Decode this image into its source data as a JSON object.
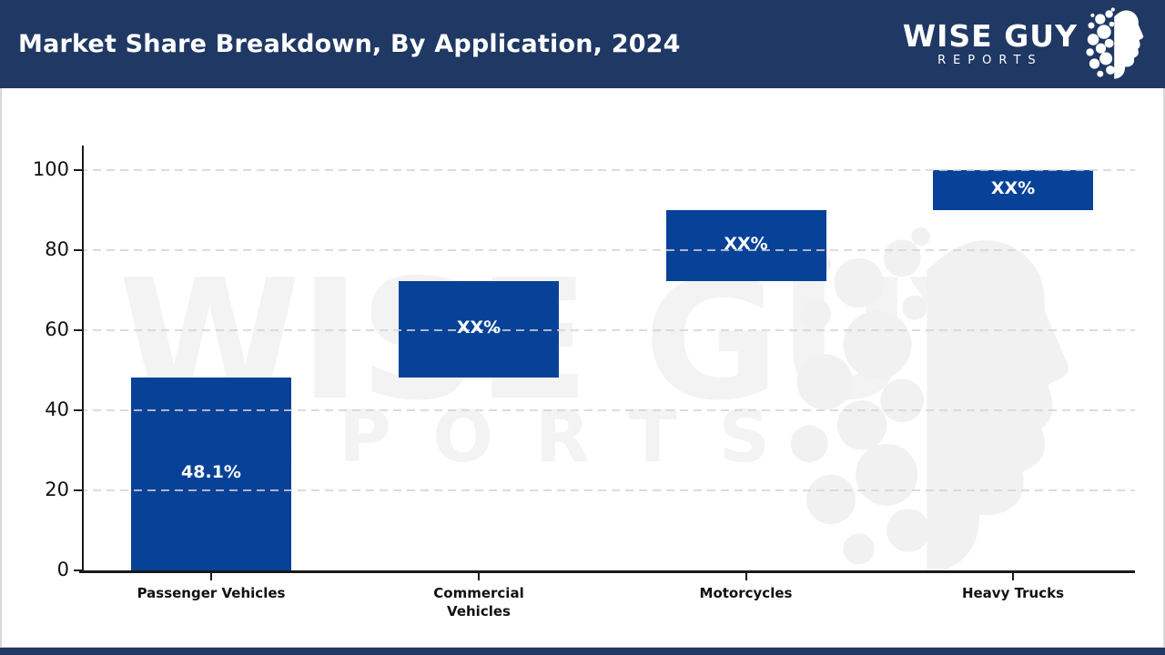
{
  "header": {
    "title": "Market Share Breakdown, By Application, 2024",
    "brand": {
      "line1": "WISE GUY",
      "line2": "REPORTS"
    },
    "bg_color": "#1f3864"
  },
  "watermark": {
    "line1": "WISE GUY",
    "line2": "REPORTS"
  },
  "chart_data": {
    "type": "bar",
    "subtype": "waterfall",
    "title": "Market Share Breakdown, By Application, 2024",
    "xlabel": "",
    "ylabel": "",
    "categories": [
      "Passenger Vehicles",
      "Commercial\nVehicles",
      "Motorcycles",
      "Heavy Trucks"
    ],
    "segments": [
      {
        "category": "Passenger Vehicles",
        "start": 0,
        "end": 48.1,
        "label": "48.1%"
      },
      {
        "category": "Commercial Vehicles",
        "start": 48.1,
        "end": 72.3,
        "label": "XX%"
      },
      {
        "category": "Motorcycles",
        "start": 72.3,
        "end": 90,
        "label": "XX%"
      },
      {
        "category": "Heavy Trucks",
        "start": 90,
        "end": 100,
        "label": "XX%"
      }
    ],
    "ylim": [
      0,
      100
    ],
    "yticks": [
      0,
      20,
      40,
      60,
      80,
      100
    ],
    "grid": "horizontal dashed",
    "legend": "none",
    "bar_color": "#084298",
    "bar_label_color": "#ffffff",
    "axis_color": "#1a1a1a"
  }
}
